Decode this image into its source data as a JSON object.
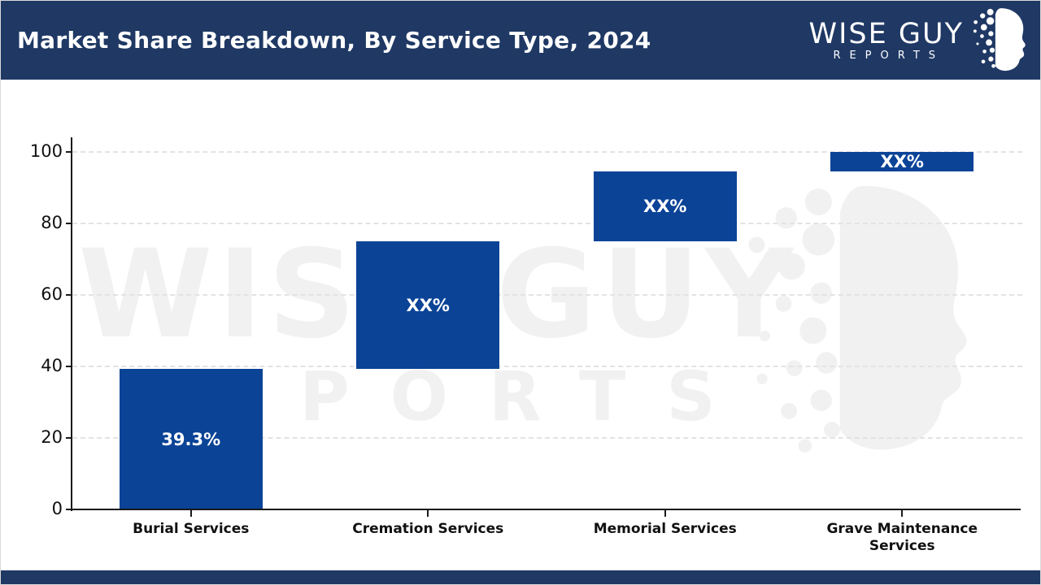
{
  "header": {
    "title": "Market Share Breakdown, By Service Type, 2024",
    "logo": {
      "brand_top": "WISE GUY",
      "brand_bottom": "REPORTS"
    }
  },
  "watermark": {
    "line1": "WISE GUY",
    "line2": "REPORTS"
  },
  "colors": {
    "header_bg": "#1f3864",
    "footer_bg": "#1f3864",
    "bar": "#0b4397",
    "bar_label": "#ffffff",
    "gridline": "#e3e3e3",
    "watermark": "#f1f1f1",
    "axis": "#1a1a1a"
  },
  "chart_data": {
    "type": "bar",
    "subtype": "waterfall",
    "title": "Market Share Breakdown, By Service Type, 2024",
    "xlabel": "",
    "ylabel": "",
    "ylim": [
      0,
      100
    ],
    "yticks": [
      0,
      20,
      40,
      60,
      80,
      100
    ],
    "grid": "horizontal-dashed",
    "legend": "none",
    "categories": [
      "Burial Services",
      "Cremation Services",
      "Memorial Services",
      "Grave Maintenance Services"
    ],
    "segments": [
      {
        "category": "Burial Services",
        "start": 0,
        "end": 39.3,
        "label": "39.3%"
      },
      {
        "category": "Cremation Services",
        "start": 39.3,
        "end": 75.0,
        "label": "XX%"
      },
      {
        "category": "Memorial Services",
        "start": 75.0,
        "end": 94.5,
        "label": "XX%"
      },
      {
        "category": "Grave Maintenance Services",
        "start": 94.5,
        "end": 100.0,
        "label": "XX%"
      }
    ]
  }
}
